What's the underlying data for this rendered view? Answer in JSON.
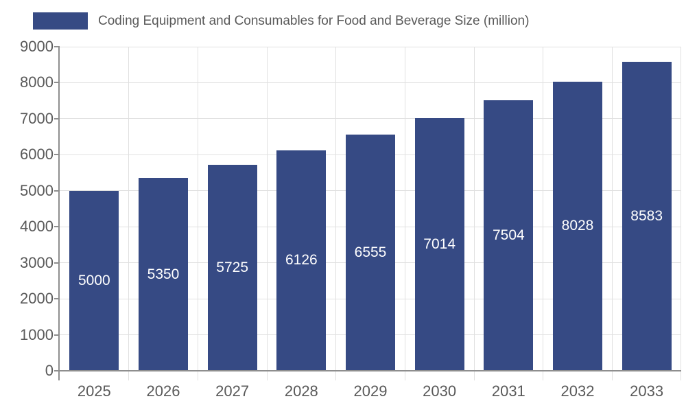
{
  "legend": {
    "label": "Coding Equipment and Consumables for Food and Beverage Size (million)"
  },
  "colors": {
    "bar": "#364A84",
    "text": "#595959",
    "axis_line": "#8E8E8E",
    "gridline": "#E0E0E0",
    "value_label": "#FFFFFF",
    "background": "#FFFFFF"
  },
  "chart_data": {
    "type": "bar",
    "title": "Coding Equipment and Consumables for Food and Beverage Size (million)",
    "categories": [
      "2025",
      "2026",
      "2027",
      "2028",
      "2029",
      "2030",
      "2031",
      "2032",
      "2033"
    ],
    "values": [
      5000,
      5350,
      5725,
      6126,
      6555,
      7014,
      7504,
      8028,
      8583
    ],
    "xlabel": "",
    "ylabel": "",
    "ylim": [
      0,
      9000
    ],
    "yticks": [
      0,
      1000,
      2000,
      3000,
      4000,
      5000,
      6000,
      7000,
      8000,
      9000
    ],
    "grid": true,
    "legend_position": "top-left",
    "value_label_position": "inside-center"
  }
}
